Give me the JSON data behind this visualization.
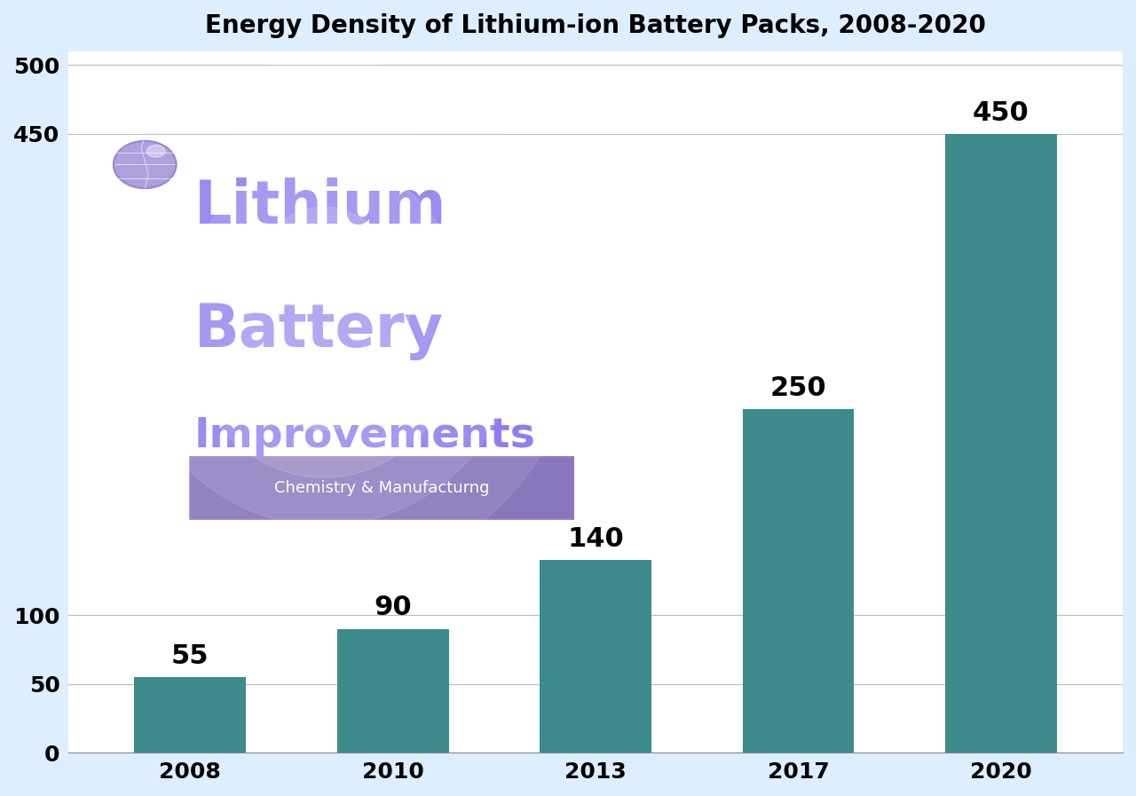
{
  "title": "Energy Density of Lithium-ion Battery Packs, 2008-2020",
  "categories": [
    "2008",
    "2010",
    "2013",
    "2017",
    "2020"
  ],
  "values": [
    55,
    90,
    140,
    250,
    450
  ],
  "bar_color": "#3d8b8b",
  "background_color": "#ddeeff",
  "plot_bg_color": "#ffffff",
  "yticks": [
    0,
    50,
    100,
    450,
    500
  ],
  "ylim": [
    0,
    510
  ],
  "title_fontsize": 20,
  "tick_fontsize": 18,
  "bar_label_fontsize": 22,
  "watermark_line1": "Lithium",
  "watermark_line2": "Battery",
  "watermark_line3": "Improvements",
  "watermark_color": "#7b68ee",
  "badge_text": "Chemistry & Manufacturng",
  "badge_bg": "#8878bb",
  "badge_text_color": "#ffffff"
}
